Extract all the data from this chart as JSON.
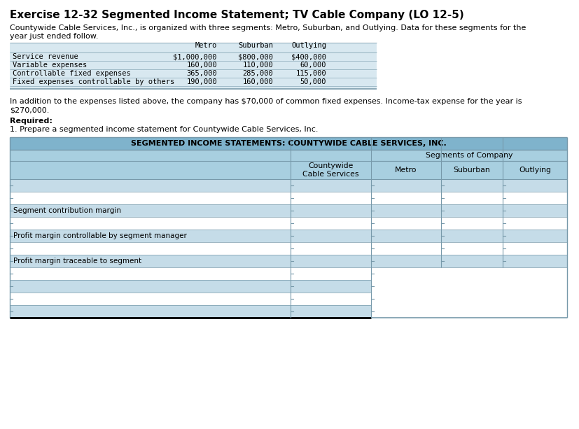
{
  "title": "Exercise 12-32 Segmented Income Statement; TV Cable Company (LO 12-5)",
  "desc1": "Countywide Cable Services, Inc., is organized with three segments: Metro, Suburban, and Outlying. Data for these segments for the",
  "desc2": "year just ended follow.",
  "dt_headers": [
    "Metro",
    "Suburban",
    "Outlying"
  ],
  "dt_rows": [
    [
      "Service revenue",
      "$1,000,000",
      "$800,000",
      "$400,000"
    ],
    [
      "Variable expenses",
      "160,000",
      "110,000",
      "60,000"
    ],
    [
      "Controllable fixed expenses",
      "365,000",
      "285,000",
      "115,000"
    ],
    [
      "Fixed expenses controllable by others",
      "190,000",
      "160,000",
      "50,000"
    ]
  ],
  "note1": "In addition to the expenses listed above, the company has $70,000 of common fixed expenses. Income-tax expense for the year is",
  "note2": "$270,000.",
  "req_label": "Required:",
  "req_item": "1. Prepare a segmented income statement for Countywide Cable Services, Inc.",
  "seg_title": "SEGMENTED INCOME STATEMENTS: COUNTYWIDE CABLE SERVICES, INC.",
  "seg_group_hdr": "Segments of Company",
  "seg_col_hdrs": [
    "Countywide\nCable Services",
    "Metro",
    "Suburban",
    "Outlying"
  ],
  "seg_rows": [
    {
      "label": "",
      "full": true
    },
    {
      "label": "",
      "full": true
    },
    {
      "label": "Segment contribution margin",
      "full": true
    },
    {
      "label": "",
      "full": true
    },
    {
      "label": "Profit margin controllable by segment manager",
      "full": true
    },
    {
      "label": "",
      "full": true
    },
    {
      "label": "Profit margin traceable to segment",
      "full": true
    },
    {
      "label": "",
      "full": false
    },
    {
      "label": "",
      "full": false
    },
    {
      "label": "",
      "full": false
    },
    {
      "label": "",
      "full": false
    }
  ],
  "color_header": "#7fb3cc",
  "color_subheader": "#a8cfe0",
  "color_row_blue": "#c5dce8",
  "color_row_white": "#ffffff",
  "color_border": "#7799aa",
  "color_thick_border": "#000000",
  "color_bg": "#ffffff",
  "color_text": "#000000",
  "color_dt_bg": "#d8e8f0",
  "fs_title": 11,
  "fs_body": 8,
  "fs_mono": 7.5,
  "fs_seg": 7.8
}
